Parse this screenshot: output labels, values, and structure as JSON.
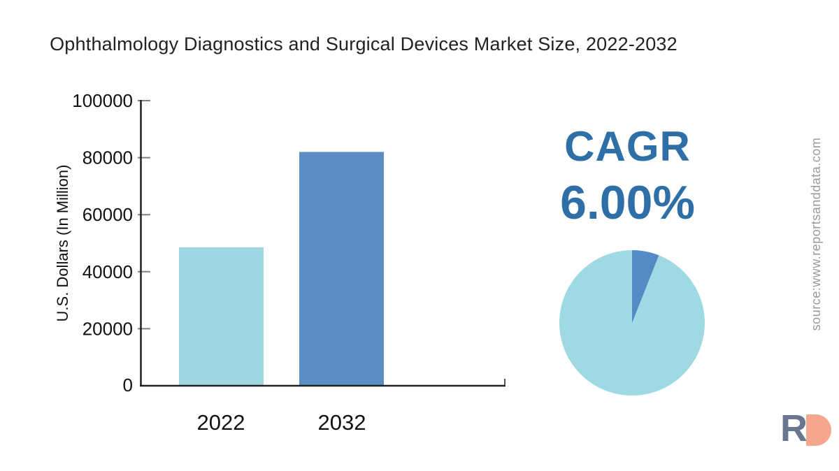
{
  "title": "Ophthalmology Diagnostics and Surgical Devices Market Size, 2022-2032",
  "cagr": {
    "label": "CAGR",
    "value": "6.00%"
  },
  "source_note": "source:www.reportsanddata.com",
  "logo": {
    "letter": "R"
  },
  "colors": {
    "bar_2022": "#9ed7e2",
    "bar_2032": "#5b8dc5",
    "accent_blue": "#2f6fa7",
    "pie_slice": "#548bc5",
    "pie_remainder": "#9fd9e3",
    "axis": "#1f1f1f",
    "tick": "#808080",
    "source_gray": "#9a9a9a",
    "logo_slate": "#68778f",
    "logo_peach": "#f4a78c",
    "title_text": "#222222"
  },
  "chart_data": [
    {
      "type": "bar",
      "title": "Ophthalmology Diagnostics and Surgical Devices Market Size, 2022-2032",
      "categories": [
        "2022",
        "2032"
      ],
      "values": [
        48560,
        82000
      ],
      "bar_colors": [
        "#9ed7e2",
        "#5b8dc5"
      ],
      "xlabel": "",
      "ylabel": "U.S. Dollars (In Million)",
      "ylim": [
        0,
        100000
      ],
      "yticks": [
        0,
        20000,
        40000,
        60000,
        80000,
        100000
      ],
      "grid": false,
      "legend": false
    },
    {
      "type": "pie",
      "label": "CAGR 6.00%",
      "values": [
        6,
        94
      ],
      "slice_labels": [
        "CAGR slice (6%)",
        "remainder (94%)"
      ],
      "colors": [
        "#548bc5",
        "#9fd9e3"
      ],
      "start_angle_deg": 0,
      "direction": "clockwise",
      "legend": false
    }
  ]
}
